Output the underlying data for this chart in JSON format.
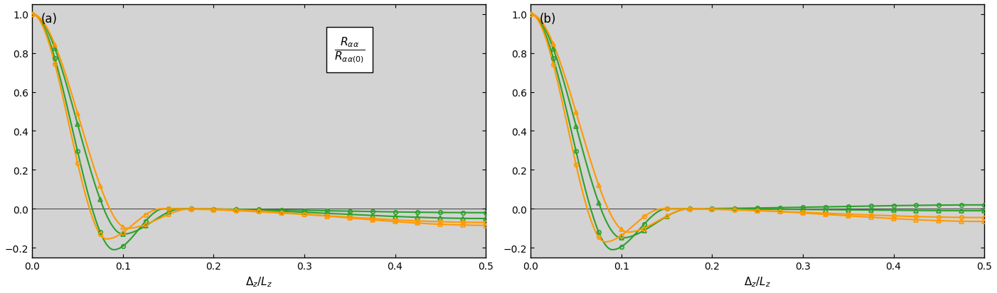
{
  "xlim": [
    0.0,
    0.5
  ],
  "ylim": [
    -0.25,
    1.05
  ],
  "yticks": [
    -0.2,
    0.0,
    0.2,
    0.4,
    0.6,
    0.8,
    1.0
  ],
  "xticks": [
    0.0,
    0.1,
    0.2,
    0.3,
    0.4,
    0.5
  ],
  "xlabel": "$\\Delta_z/L_z$",
  "panel_labels": [
    "(a)",
    "(b)"
  ],
  "green_color": "#2ca02c",
  "orange_color": "#ff9900",
  "background_color": "#d3d3d3",
  "legend_text_line1": "$R_{\\alpha\\alpha}$",
  "legend_text_line2": "$R_{\\alpha\\alpha(0)}$"
}
